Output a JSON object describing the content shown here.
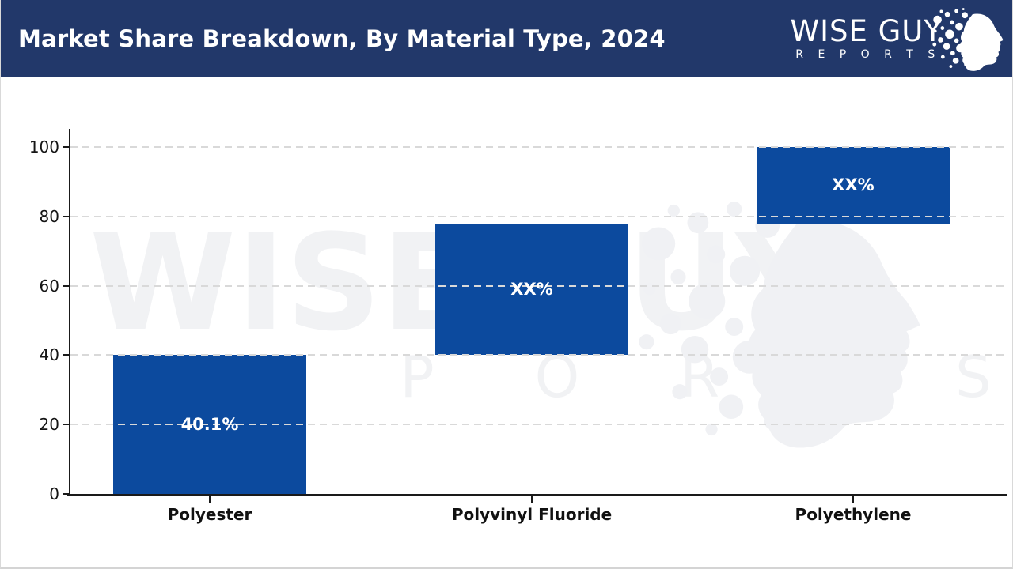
{
  "header": {
    "title": "Market Share Breakdown, By Material Type, 2024",
    "logo": {
      "line1": "WISE GUY",
      "line2": "R E P O R T S"
    }
  },
  "watermark": {
    "line1": "WISE GUY",
    "line2": "R E P O R T S"
  },
  "chart_data": {
    "type": "bar",
    "subtype": "waterfall",
    "title": "Market Share Breakdown, By Material Type, 2024",
    "categories": [
      "Polyester",
      "Polyvinyl Fluoride",
      "Polyethylene"
    ],
    "segments": [
      {
        "start": 0,
        "end": 40.1
      },
      {
        "start": 40.1,
        "end": 78
      },
      {
        "start": 78,
        "end": 100
      }
    ],
    "bar_labels": [
      "40.1%",
      "XX%",
      "XX%"
    ],
    "yticks": [
      0,
      20,
      40,
      60,
      80,
      100
    ],
    "ylim": [
      0,
      105
    ],
    "xlabel": "",
    "ylabel": "",
    "grid": "horizontal-dashed",
    "legend": "none"
  },
  "colors": {
    "header_bg": "#22386a",
    "bar": "#0c4a9e",
    "bar_label": "#ffffff",
    "grid": "#d9d9d9",
    "axis": "#1a1a1a",
    "watermark": "#f1f2f4",
    "title_text": "#ffffff"
  }
}
